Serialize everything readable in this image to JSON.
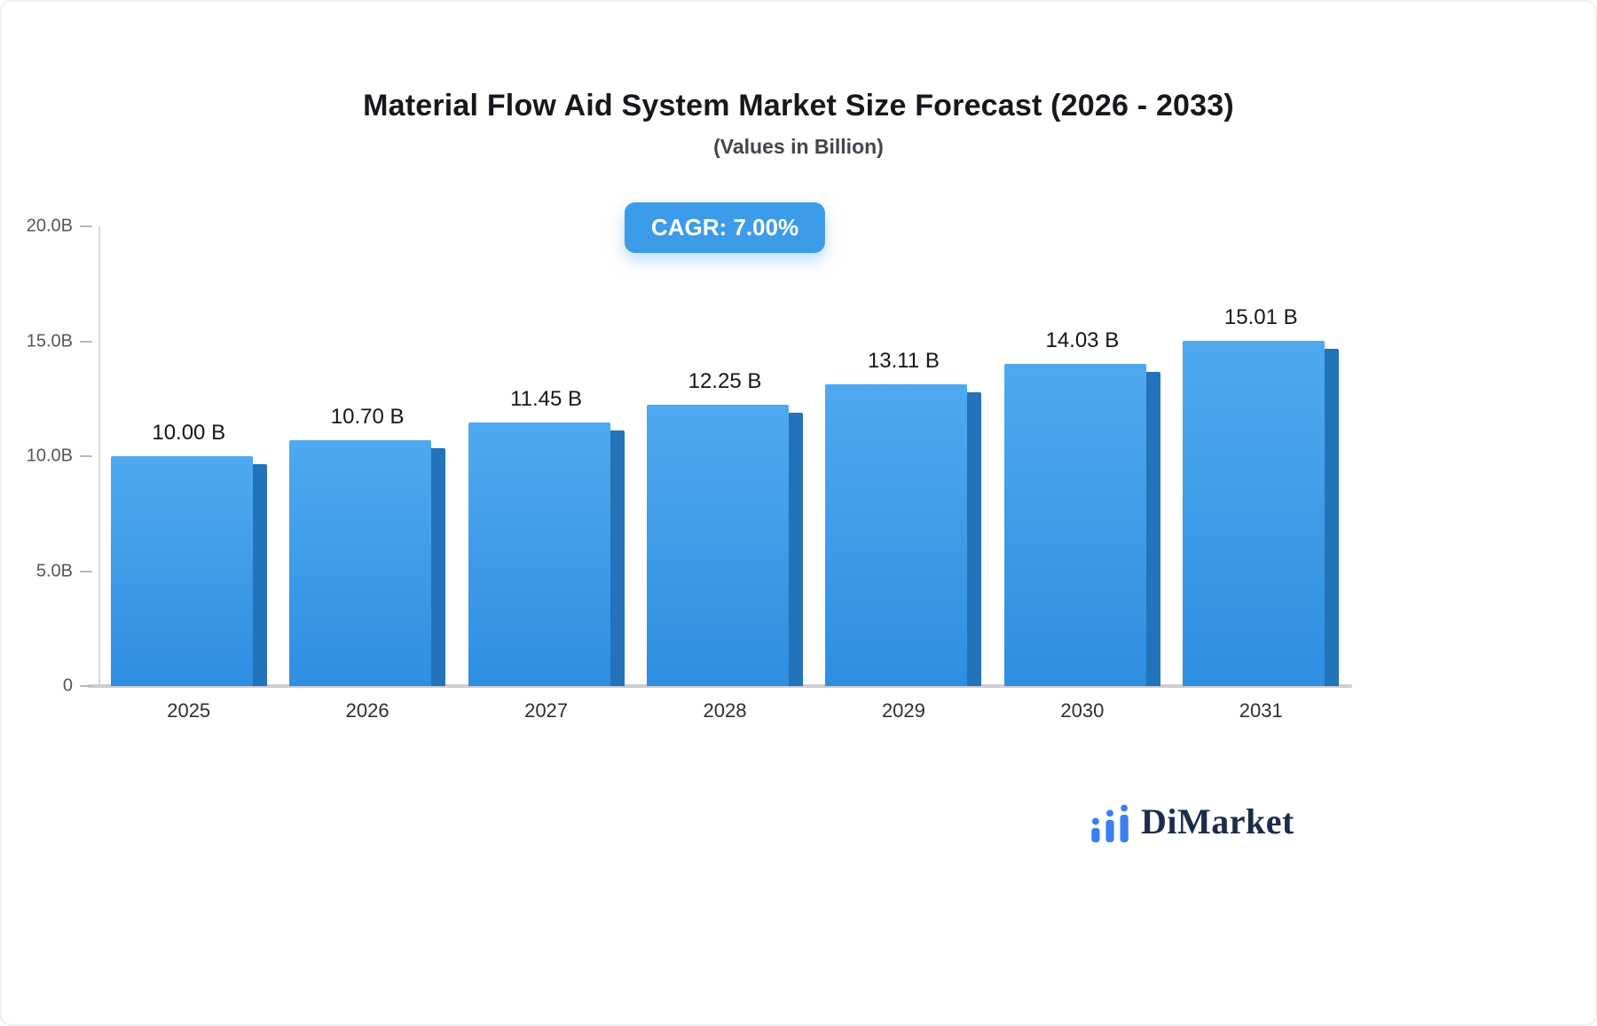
{
  "branding": {
    "name": "DiMarket"
  },
  "chart_data": {
    "type": "bar",
    "title": "Material Flow Aid System Market Size Forecast (2026 - 2033)",
    "subtitle": "(Values in Billion)",
    "annotation": "CAGR: 7.00%",
    "categories": [
      "2025",
      "2026",
      "2027",
      "2028",
      "2029",
      "2030",
      "2031"
    ],
    "values": [
      10.0,
      10.7,
      11.45,
      12.25,
      13.11,
      14.03,
      15.01
    ],
    "value_labels": [
      "10.00 B",
      "10.70 B",
      "11.45 B",
      "12.25 B",
      "13.11 B",
      "14.03 B",
      "15.01 B"
    ],
    "ylim": [
      0,
      20
    ],
    "y_ticks": [
      {
        "label": "20.0B",
        "value": 20
      },
      {
        "label": "15.0B",
        "value": 15
      },
      {
        "label": "10.0B",
        "value": 10
      },
      {
        "label": "5.0B",
        "value": 5
      },
      {
        "label": "0",
        "value": 0
      }
    ],
    "grid": false,
    "legend": false,
    "bar_color_top": "#4FA9EF",
    "bar_color_bottom": "#2E8EE2",
    "bar_side_color": "#2273BA",
    "accent_color": "#3d9ce9",
    "logo_color": "#3a7ef0"
  }
}
